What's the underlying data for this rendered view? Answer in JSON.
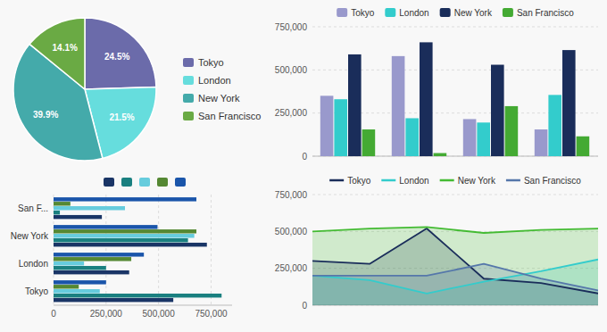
{
  "chart_data": [
    {
      "type": "pie",
      "categories": [
        "Tokyo",
        "London",
        "New York",
        "San Francisco"
      ],
      "values": [
        24.5,
        21.5,
        39.9,
        14.1
      ],
      "value_labels": [
        "24.5%",
        "21.5%",
        "39.9%",
        "14.1%"
      ],
      "colors": [
        "#6b6baa",
        "#66dddd",
        "#44aaaa",
        "#6aaa44"
      ],
      "data_labels": true,
      "legend": "right"
    },
    {
      "type": "bar",
      "categories": [
        null,
        null,
        null,
        null
      ],
      "series": [
        {
          "name": "Tokyo",
          "color": "#9999cc",
          "values": [
            350000,
            580000,
            215000,
            155000
          ]
        },
        {
          "name": "London",
          "color": "#33cccc",
          "values": [
            330000,
            220000,
            195000,
            355000
          ]
        },
        {
          "name": "New York",
          "color": "#1a2d5a",
          "values": [
            590000,
            660000,
            530000,
            615000
          ]
        },
        {
          "name": "San Francisco",
          "color": "#44aa33",
          "values": [
            155000,
            18000,
            290000,
            115000
          ]
        }
      ],
      "ylim": [
        0,
        750000
      ],
      "yticks": [
        0,
        {
          "value": 250000,
          "label": "250,000"
        },
        {
          "value": 500000,
          "label": "500,000"
        },
        {
          "value": 750000,
          "label": "750,000"
        }
      ],
      "grid": true,
      "legend": "top",
      "tick_labels": "y"
    },
    {
      "type": "bar",
      "orientation": "horizontal",
      "categories": [
        "Tokyo",
        "London",
        "New York",
        "San F..."
      ],
      "series": [
        {
          "color": "#1a3566",
          "values": [
            570000,
            360000,
            730000,
            230000
          ]
        },
        {
          "color": "#1a8080",
          "values": [
            800000,
            250000,
            640000,
            30000
          ]
        },
        {
          "color": "#66ccdd",
          "values": [
            220000,
            145000,
            670000,
            340000
          ]
        },
        {
          "color": "#558833",
          "values": [
            120000,
            370000,
            680000,
            80000
          ]
        },
        {
          "color": "#1a55aa",
          "values": [
            250000,
            430000,
            495000,
            680000
          ]
        }
      ],
      "xlim": [
        0,
        850000
      ],
      "xticks": [
        0,
        {
          "value": 250000,
          "label": "250,000"
        },
        {
          "value": 500000,
          "label": "500,000"
        },
        {
          "value": 750000,
          "label": "750,000"
        }
      ],
      "grid": true,
      "legend": "top"
    },
    {
      "type": "area",
      "categories": [
        null,
        null,
        null,
        null,
        null,
        null
      ],
      "series": [
        {
          "name": "Tokyo",
          "color": "#1a2d5a",
          "values": [
            300000,
            280000,
            520000,
            180000,
            150000,
            80000
          ]
        },
        {
          "name": "London",
          "color": "#33cccc",
          "values": [
            200000,
            170000,
            80000,
            160000,
            230000,
            310000
          ]
        },
        {
          "name": "New York",
          "color": "#44bb33",
          "values": [
            500000,
            520000,
            530000,
            490000,
            510000,
            520000
          ]
        },
        {
          "name": "San Francisco",
          "color": "#5577aa",
          "values": [
            200000,
            200000,
            200000,
            280000,
            180000,
            100000
          ]
        }
      ],
      "ylim": [
        0,
        750000
      ],
      "yticks": [
        0,
        {
          "value": 250000,
          "label": "250,000"
        },
        {
          "value": 500000,
          "label": "500,000"
        },
        {
          "value": 750000,
          "label": "750,000"
        }
      ],
      "grid": true,
      "legend": "top",
      "tick_labels": "y"
    }
  ]
}
